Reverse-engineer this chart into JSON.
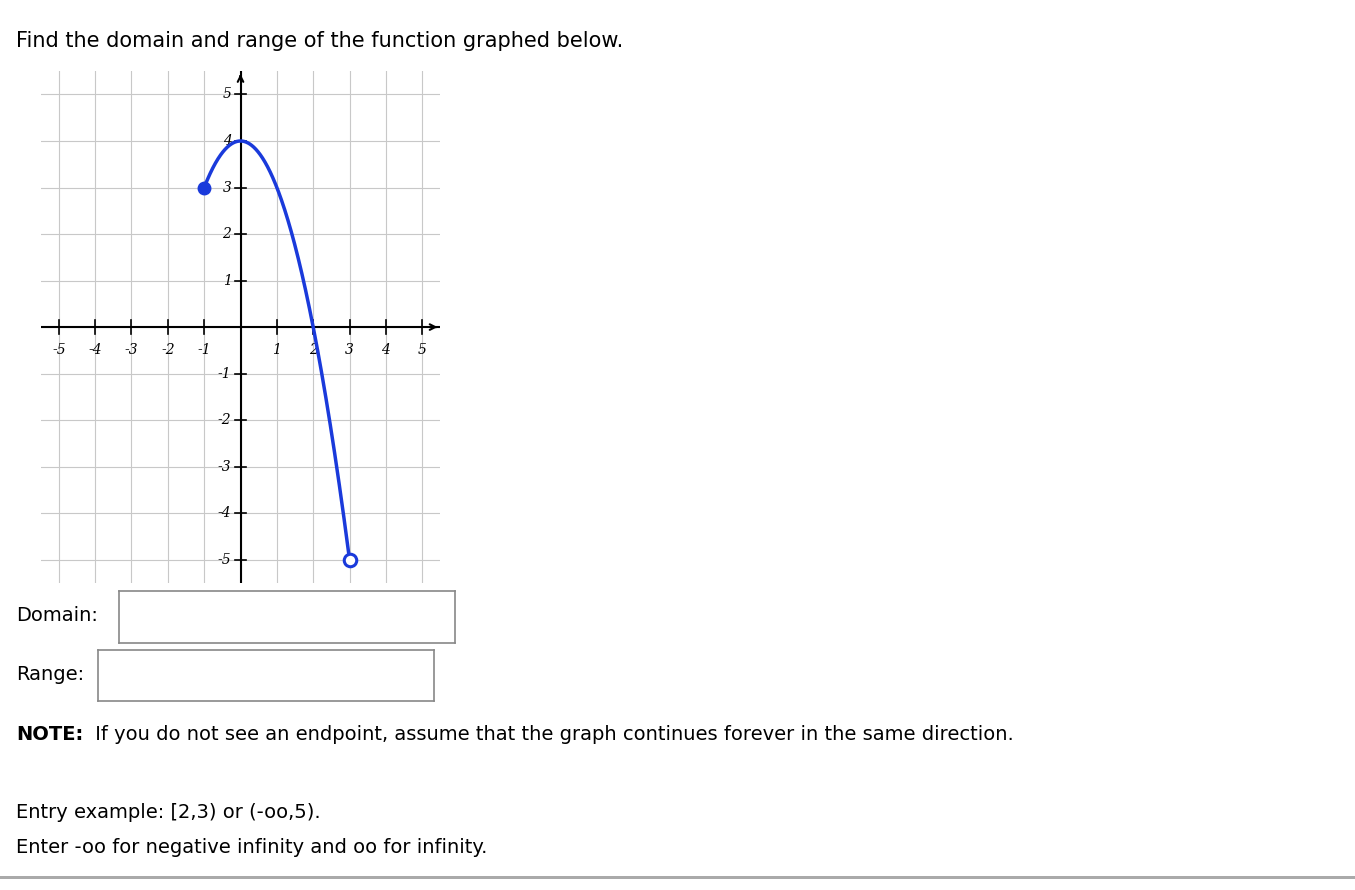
{
  "title": "Find the domain and range of the function graphed below.",
  "graph_xlim": [
    -5.5,
    5.5
  ],
  "graph_ylim": [
    -5.5,
    5.5
  ],
  "grid_color": "#c8c8c8",
  "axis_color": "#000000",
  "curve_color": "#1a3adb",
  "filled_dot": [
    -1,
    3
  ],
  "open_dot": [
    3,
    -5
  ],
  "dot_size": 9,
  "background_color": "#ffffff",
  "domain_label": "Domain:",
  "range_label": "Range:",
  "note_bold": "NOTE:",
  "note_text": " If you do not see an endpoint, assume that the graph continues forever in the same direction.",
  "entry_line1": "Entry example: [2,3) or (-oo,5).",
  "entry_line2": "Enter -oo for negative infinity and oo for infinity.",
  "xticks": [
    -5,
    -4,
    -3,
    -2,
    -1,
    1,
    2,
    3,
    4,
    5
  ],
  "yticks": [
    -5,
    -4,
    -3,
    -2,
    -1,
    1,
    2,
    3,
    4,
    5
  ]
}
